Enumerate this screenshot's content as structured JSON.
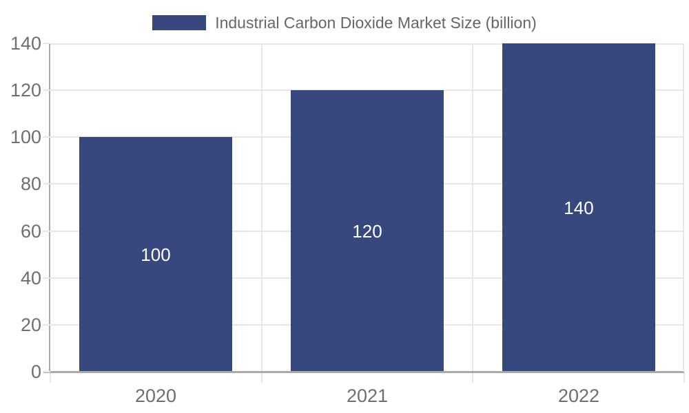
{
  "chart_data": {
    "type": "bar",
    "title": "Industrial Carbon Dioxide Market Size (billion)",
    "legend_position": "top",
    "categories": [
      "2020",
      "2021",
      "2022"
    ],
    "values": [
      100,
      120,
      140
    ],
    "bar_labels": [
      "100",
      "120",
      "140"
    ],
    "yticks": [
      0,
      20,
      40,
      60,
      80,
      100,
      120,
      140
    ],
    "ylim": [
      0,
      140
    ],
    "xlabel": "",
    "ylabel": "",
    "grid": true,
    "colors": {
      "bar": "#36487d",
      "bar_label": "#ffffff",
      "tick_text": "#6e6e6e",
      "legend_text": "#666666",
      "grid": "#e7e7e7",
      "axis": "#a9a9a9"
    }
  }
}
